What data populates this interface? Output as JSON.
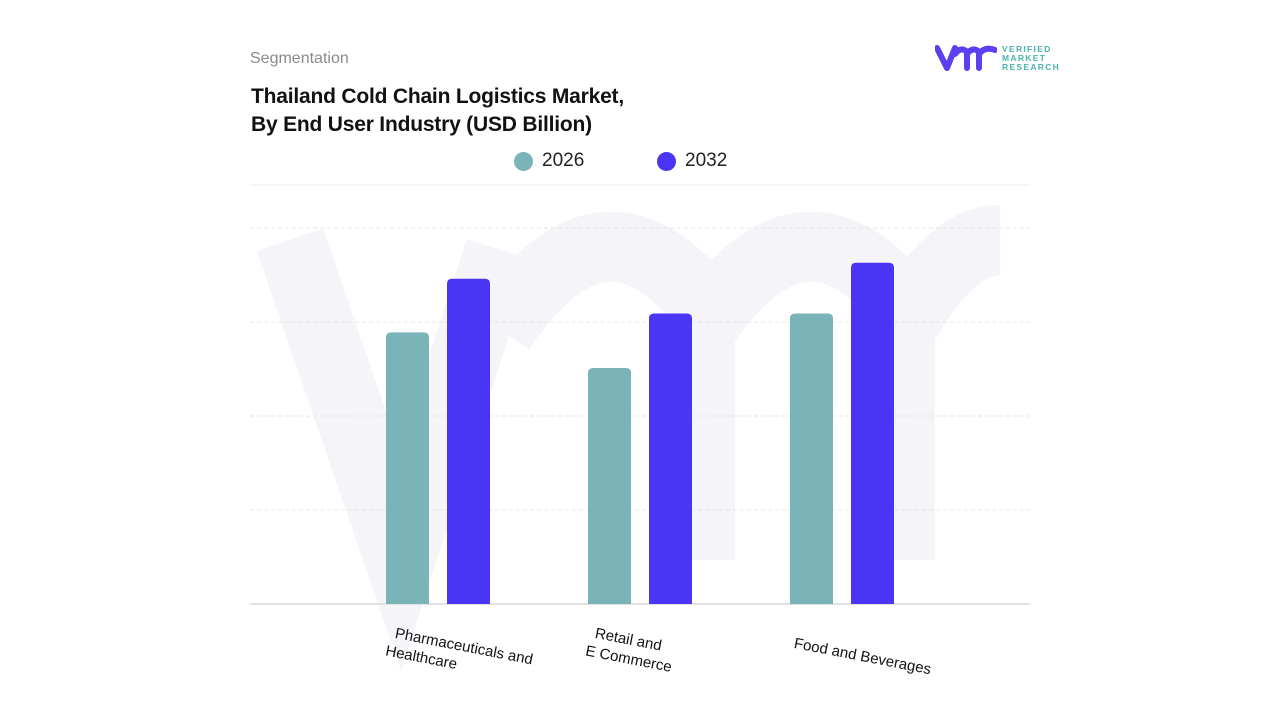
{
  "header": {
    "segment_label": "Segmentation",
    "title_line1": "Thailand Cold Chain Logistics Market,",
    "title_line2": "By End User Industry (USD Billion)"
  },
  "logo": {
    "line1": "VERIFIED",
    "line2": "MARKET",
    "line3": "RESEARCH",
    "registered": "®"
  },
  "colors": {
    "2026": "#7ab4b8",
    "2032": "#4a35f5",
    "brand": "#5b3ff0",
    "grid": "#dddddd"
  },
  "chart_data": {
    "type": "bar",
    "title": "Thailand Cold Chain Logistics Market, By End User Industry (USD Billion)",
    "categories": [
      "Pharmaceuticals and Healthcare",
      "Retail and E Commerce",
      "Food and Beverages"
    ],
    "category_labels": [
      [
        "Pharmaceuticals and",
        "Healthcare"
      ],
      [
        "Retail and",
        "E Commerce"
      ],
      [
        "Food and Beverages"
      ]
    ],
    "series": [
      {
        "name": "2026",
        "values": [
          2.89,
          2.51,
          3.09
        ]
      },
      {
        "name": "2032",
        "values": [
          3.46,
          3.09,
          3.63
        ]
      }
    ],
    "ylim": [
      0,
      4
    ],
    "grid": true,
    "legend": "top",
    "y_tick_labels_shown": false
  }
}
